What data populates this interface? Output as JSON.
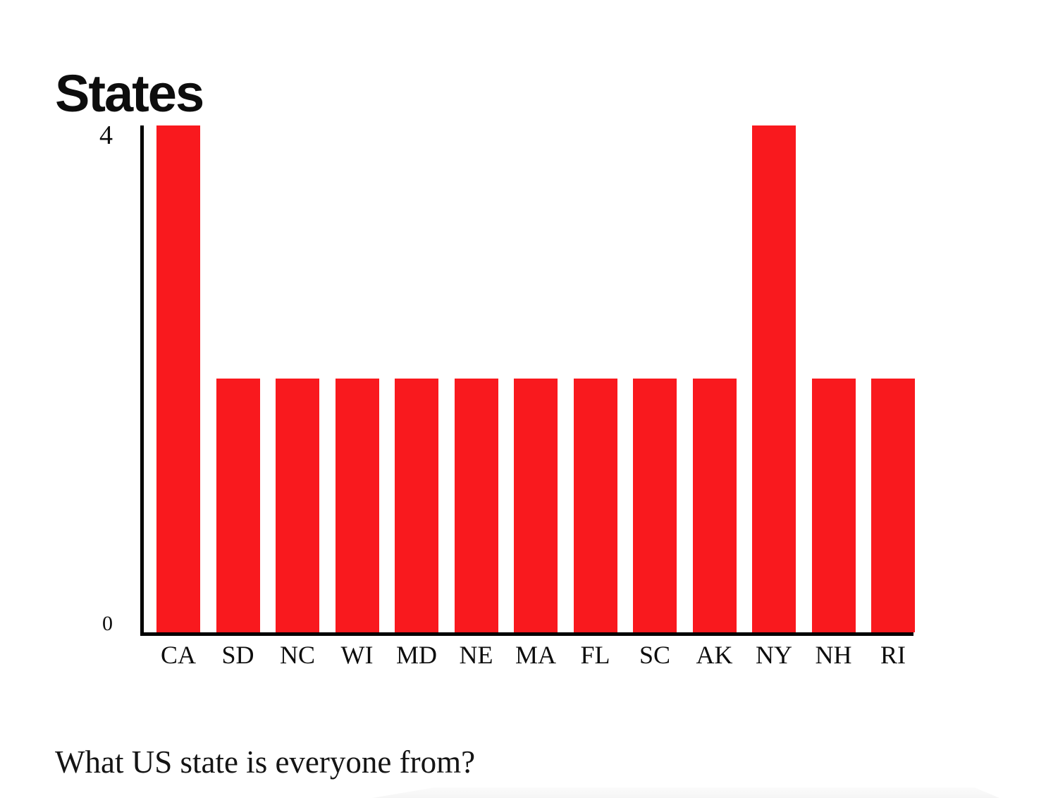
{
  "page": {
    "title": "States",
    "caption": "What US state is everyone from?"
  },
  "chart_data": {
    "type": "bar",
    "title": "States",
    "categories": [
      "CA",
      "SD",
      "NC",
      "WI",
      "MD",
      "NE",
      "MA",
      "FL",
      "SC",
      "AK",
      "NY",
      "NH",
      "RI"
    ],
    "values": [
      4,
      2,
      2,
      2,
      2,
      2,
      2,
      2,
      2,
      2,
      4,
      2,
      2
    ],
    "xlabel": "",
    "ylabel": "",
    "ylim": [
      0,
      4
    ],
    "yticks": [
      0,
      4
    ],
    "ytick_labels": [
      "0",
      "4"
    ],
    "grid": false,
    "legend": false,
    "bar_color": "#F9191E",
    "axis_color": "#000000",
    "text_color": "#0d0d0d"
  }
}
